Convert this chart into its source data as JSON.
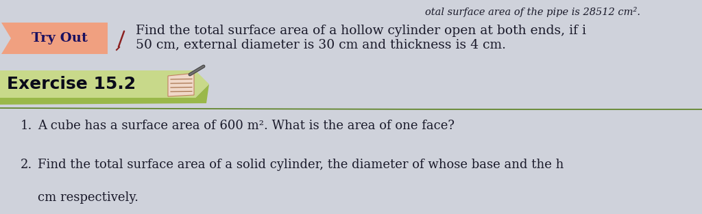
{
  "bg_color": "#cfd2db",
  "top_text": "•otal surface area of the pipe is 28512 cm².",
  "try_out_label": "Try Out",
  "try_out_bg": "#f0a080",
  "try_out_text_color": "#1a1060",
  "try_out_body": "Find the total surface area of a hollow cylinder open at both ends, if i\n50 cm, external diameter is 30 cm and thickness is 4 cm.",
  "exercise_label": "Exercise 15.2",
  "exercise_bg": "#c8d98a",
  "exercise_bg_dark": "#9ab84a",
  "exercise_text_color": "#0a0a1a",
  "item1_num": "1.",
  "item1_text": "A cube has a surface area of 600 m². What is the area of one face?",
  "item2_num": "2.",
  "item2_text": "Find the total surface area of a solid cylinder, the diameter of whose base and the h",
  "item3_text": "cm respectively.",
  "body_text_color": "#1a1a2a",
  "font_size_top": 10.5,
  "font_size_tryout_label": 14,
  "font_size_tryout_body": 13.5,
  "font_size_exercise": 18,
  "font_size_items": 13
}
